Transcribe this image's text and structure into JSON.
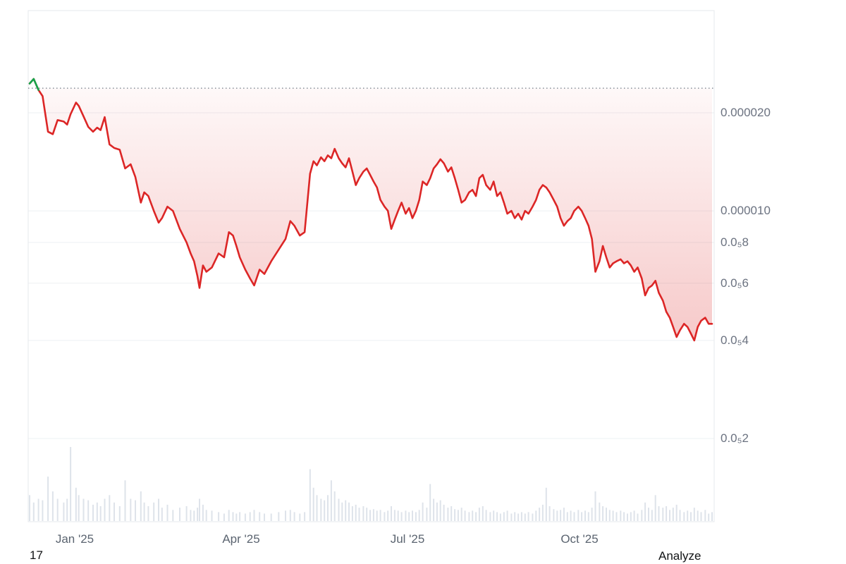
{
  "page": {
    "bottom_left_text": "17",
    "analyze_label": "Analyze"
  },
  "colors": {
    "line_down": "#dc2626",
    "line_up": "#16a34a",
    "fill_top": "rgba(220,38,38,0.03)",
    "fill_bottom": "rgba(220,38,38,0.26)",
    "volume": "#dee3ea",
    "grid": "#eef0f3",
    "border": "#e6e8ec",
    "reference": "#868e98",
    "axis_label": "#6b7280"
  },
  "chart_data": {
    "type": "line",
    "title": "",
    "xlabel": "",
    "ylabel": "",
    "yaxis": {
      "scale": "log",
      "unit_note": "price values are micro-units (value x 1e-6)",
      "ticks": [
        {
          "value_micro": 20,
          "label": "0.000020"
        },
        {
          "value_micro": 10,
          "label": "0.000010"
        },
        {
          "value_micro": 8,
          "label": "0.0₅8"
        },
        {
          "value_micro": 6,
          "label": "0.0₅6"
        },
        {
          "value_micro": 4,
          "label": "0.0₅4"
        },
        {
          "value_micro": 2,
          "label": "0.0₅2"
        }
      ]
    },
    "xaxis": {
      "ticks": [
        {
          "label": "Jan '25",
          "x01": 0.066
        },
        {
          "label": "Apr '25",
          "x01": 0.31
        },
        {
          "label": "Jul '25",
          "x01": 0.554
        },
        {
          "label": "Oct '25",
          "x01": 0.806
        }
      ]
    },
    "reference_line": {
      "price_micro": 23.8,
      "style": "dotted"
    },
    "summary": {
      "start_price_micro": 24.6,
      "end_price_micro": 4.5,
      "max_price_micro": 25.4,
      "min_price_micro": 4.0
    },
    "series": {
      "name": "price",
      "points_format": [
        "x01",
        "price_micro",
        "volume_rel"
      ],
      "points": [
        [
          0.0,
          24.6,
          35
        ],
        [
          0.006,
          25.4,
          25
        ],
        [
          0.013,
          23.5,
          30
        ],
        [
          0.019,
          22.5,
          28
        ],
        [
          0.027,
          17.5,
          60
        ],
        [
          0.034,
          17.2,
          40
        ],
        [
          0.041,
          19.0,
          30
        ],
        [
          0.05,
          18.8,
          25
        ],
        [
          0.055,
          18.4,
          30
        ],
        [
          0.06,
          19.8,
          100
        ],
        [
          0.068,
          21.5,
          45
        ],
        [
          0.072,
          21.0,
          35
        ],
        [
          0.079,
          19.5,
          30
        ],
        [
          0.086,
          18.1,
          28
        ],
        [
          0.093,
          17.5,
          22
        ],
        [
          0.099,
          18.0,
          25
        ],
        [
          0.104,
          17.7,
          20
        ],
        [
          0.11,
          19.4,
          30
        ],
        [
          0.117,
          16.0,
          35
        ],
        [
          0.124,
          15.6,
          25
        ],
        [
          0.132,
          15.4,
          20
        ],
        [
          0.14,
          13.5,
          55
        ],
        [
          0.148,
          13.9,
          30
        ],
        [
          0.155,
          12.7,
          28
        ],
        [
          0.163,
          10.6,
          40
        ],
        [
          0.168,
          11.4,
          25
        ],
        [
          0.174,
          11.1,
          20
        ],
        [
          0.182,
          10.0,
          25
        ],
        [
          0.189,
          9.2,
          30
        ],
        [
          0.194,
          9.5,
          18
        ],
        [
          0.202,
          10.3,
          22
        ],
        [
          0.21,
          10.0,
          15
        ],
        [
          0.22,
          8.8,
          18
        ],
        [
          0.23,
          8.0,
          20
        ],
        [
          0.236,
          7.4,
          15
        ],
        [
          0.241,
          7.0,
          14
        ],
        [
          0.246,
          6.3,
          18
        ],
        [
          0.249,
          5.8,
          30
        ],
        [
          0.254,
          6.8,
          22
        ],
        [
          0.259,
          6.5,
          15
        ],
        [
          0.267,
          6.7,
          14
        ],
        [
          0.277,
          7.4,
          12
        ],
        [
          0.285,
          7.2,
          10
        ],
        [
          0.292,
          8.6,
          15
        ],
        [
          0.298,
          8.4,
          12
        ],
        [
          0.303,
          7.8,
          10
        ],
        [
          0.308,
          7.2,
          12
        ],
        [
          0.316,
          6.6,
          10
        ],
        [
          0.323,
          6.2,
          12
        ],
        [
          0.329,
          5.9,
          15
        ],
        [
          0.337,
          6.6,
          12
        ],
        [
          0.344,
          6.4,
          10
        ],
        [
          0.354,
          7.0,
          10
        ],
        [
          0.365,
          7.6,
          12
        ],
        [
          0.375,
          8.2,
          14
        ],
        [
          0.382,
          9.3,
          15
        ],
        [
          0.388,
          9.0,
          12
        ],
        [
          0.396,
          8.4,
          10
        ],
        [
          0.403,
          8.6,
          12
        ],
        [
          0.411,
          13.0,
          70
        ],
        [
          0.416,
          14.2,
          45
        ],
        [
          0.421,
          13.8,
          35
        ],
        [
          0.427,
          14.6,
          30
        ],
        [
          0.432,
          14.2,
          28
        ],
        [
          0.437,
          14.8,
          35
        ],
        [
          0.442,
          14.5,
          55
        ],
        [
          0.447,
          15.5,
          40
        ],
        [
          0.453,
          14.5,
          30
        ],
        [
          0.458,
          14.0,
          25
        ],
        [
          0.463,
          13.6,
          28
        ],
        [
          0.468,
          14.5,
          25
        ],
        [
          0.473,
          13.2,
          20
        ],
        [
          0.478,
          12.0,
          22
        ],
        [
          0.483,
          12.6,
          18
        ],
        [
          0.489,
          13.2,
          20
        ],
        [
          0.494,
          13.5,
          18
        ],
        [
          0.499,
          12.9,
          15
        ],
        [
          0.504,
          12.3,
          16
        ],
        [
          0.509,
          11.8,
          14
        ],
        [
          0.514,
          10.8,
          15
        ],
        [
          0.52,
          10.3,
          12
        ],
        [
          0.525,
          10.0,
          14
        ],
        [
          0.53,
          8.8,
          20
        ],
        [
          0.535,
          9.4,
          15
        ],
        [
          0.54,
          10.0,
          14
        ],
        [
          0.545,
          10.6,
          12
        ],
        [
          0.551,
          9.8,
          14
        ],
        [
          0.556,
          10.2,
          12
        ],
        [
          0.561,
          9.5,
          14
        ],
        [
          0.566,
          10.0,
          12
        ],
        [
          0.571,
          10.8,
          15
        ],
        [
          0.576,
          12.3,
          25
        ],
        [
          0.582,
          12.0,
          18
        ],
        [
          0.587,
          12.6,
          50
        ],
        [
          0.592,
          13.5,
          30
        ],
        [
          0.597,
          13.9,
          25
        ],
        [
          0.602,
          14.4,
          28
        ],
        [
          0.607,
          14.0,
          22
        ],
        [
          0.613,
          13.2,
          18
        ],
        [
          0.618,
          13.6,
          20
        ],
        [
          0.623,
          12.6,
          16
        ],
        [
          0.628,
          11.6,
          15
        ],
        [
          0.633,
          10.6,
          18
        ],
        [
          0.638,
          10.8,
          14
        ],
        [
          0.644,
          11.4,
          12
        ],
        [
          0.649,
          11.6,
          14
        ],
        [
          0.654,
          11.1,
          12
        ],
        [
          0.659,
          12.6,
          18
        ],
        [
          0.664,
          12.9,
          20
        ],
        [
          0.669,
          12.0,
          15
        ],
        [
          0.675,
          11.6,
          12
        ],
        [
          0.68,
          12.3,
          14
        ],
        [
          0.685,
          11.1,
          12
        ],
        [
          0.69,
          11.4,
          10
        ],
        [
          0.695,
          10.6,
          12
        ],
        [
          0.7,
          9.8,
          14
        ],
        [
          0.706,
          10.0,
          10
        ],
        [
          0.711,
          9.5,
          12
        ],
        [
          0.716,
          9.8,
          10
        ],
        [
          0.721,
          9.4,
          12
        ],
        [
          0.726,
          10.0,
          10
        ],
        [
          0.731,
          9.8,
          12
        ],
        [
          0.737,
          10.3,
          10
        ],
        [
          0.742,
          10.8,
          14
        ],
        [
          0.747,
          11.6,
          18
        ],
        [
          0.752,
          12.0,
          22
        ],
        [
          0.757,
          11.8,
          45
        ],
        [
          0.762,
          11.4,
          20
        ],
        [
          0.768,
          10.8,
          16
        ],
        [
          0.773,
          10.3,
          14
        ],
        [
          0.778,
          9.5,
          15
        ],
        [
          0.783,
          9.0,
          18
        ],
        [
          0.788,
          9.3,
          12
        ],
        [
          0.793,
          9.5,
          14
        ],
        [
          0.798,
          10.0,
          12
        ],
        [
          0.804,
          10.3,
          15
        ],
        [
          0.809,
          10.0,
          12
        ],
        [
          0.814,
          9.5,
          14
        ],
        [
          0.819,
          9.0,
          12
        ],
        [
          0.824,
          8.2,
          18
        ],
        [
          0.829,
          6.5,
          40
        ],
        [
          0.835,
          7.0,
          25
        ],
        [
          0.84,
          7.8,
          20
        ],
        [
          0.845,
          7.2,
          18
        ],
        [
          0.85,
          6.7,
          15
        ],
        [
          0.855,
          6.9,
          14
        ],
        [
          0.86,
          7.0,
          12
        ],
        [
          0.866,
          7.1,
          14
        ],
        [
          0.871,
          6.9,
          12
        ],
        [
          0.876,
          7.0,
          10
        ],
        [
          0.881,
          6.8,
          12
        ],
        [
          0.886,
          6.5,
          14
        ],
        [
          0.891,
          6.7,
          10
        ],
        [
          0.897,
          6.2,
          15
        ],
        [
          0.902,
          5.5,
          25
        ],
        [
          0.907,
          5.8,
          18
        ],
        [
          0.912,
          5.9,
          15
        ],
        [
          0.917,
          6.1,
          35
        ],
        [
          0.922,
          5.6,
          20
        ],
        [
          0.928,
          5.3,
          18
        ],
        [
          0.933,
          4.9,
          20
        ],
        [
          0.938,
          4.7,
          15
        ],
        [
          0.943,
          4.4,
          18
        ],
        [
          0.948,
          4.1,
          22
        ],
        [
          0.953,
          4.3,
          15
        ],
        [
          0.959,
          4.5,
          12
        ],
        [
          0.964,
          4.4,
          14
        ],
        [
          0.969,
          4.2,
          12
        ],
        [
          0.974,
          4.0,
          18
        ],
        [
          0.979,
          4.4,
          14
        ],
        [
          0.984,
          4.6,
          12
        ],
        [
          0.99,
          4.7,
          15
        ],
        [
          0.995,
          4.5,
          10
        ],
        [
          1.0,
          4.5,
          12
        ]
      ]
    }
  }
}
